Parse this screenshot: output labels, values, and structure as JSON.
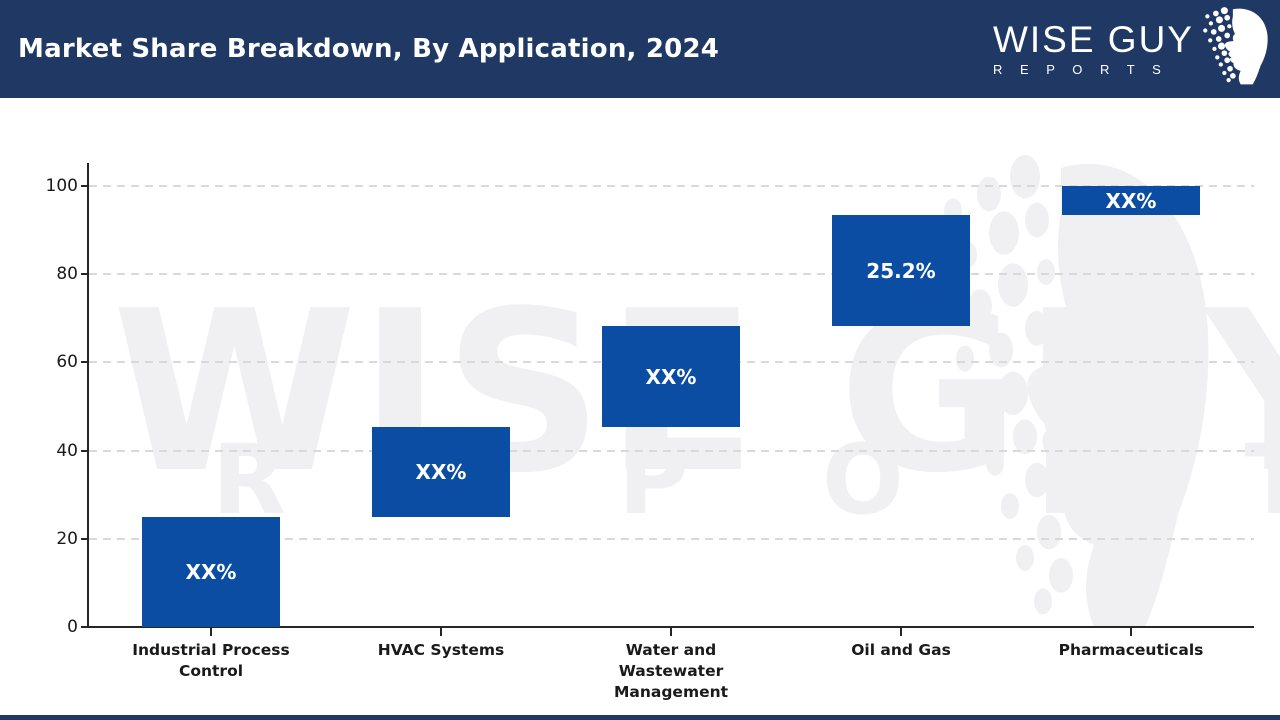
{
  "header": {
    "title": "Market Share Breakdown, By Application, 2024",
    "logo": {
      "line1": "WISE GUY",
      "line2": "R E P O R T S"
    }
  },
  "watermark": {
    "line1": "WISE GUY",
    "line2": "R E P O R T S"
  },
  "colors": {
    "header_bg": "#1f3864",
    "bar": "#0b4da2",
    "bar_label": "#ffffff",
    "grid": "#d9d9d9",
    "axis": "#262626",
    "tick_label": "#1a1a1a",
    "watermark": "#f0f0f3"
  },
  "chart_data": {
    "type": "bar",
    "variant": "waterfall-stacked-percent",
    "title": "Market Share Breakdown, By Application, 2024",
    "categories": [
      "Industrial Process\nControl",
      "HVAC Systems",
      "Water and\nWastewater\nManagement",
      "Oil and Gas",
      "Pharmaceuticals"
    ],
    "segments": [
      {
        "category": "Industrial Process Control",
        "start": 0,
        "end": 25.0,
        "label": "XX%"
      },
      {
        "category": "HVAC Systems",
        "start": 25.0,
        "end": 45.4,
        "label": "XX%"
      },
      {
        "category": "Water and Wastewater Management",
        "start": 45.4,
        "end": 68.2,
        "label": "XX%"
      },
      {
        "category": "Oil and Gas",
        "start": 68.2,
        "end": 93.4,
        "label": "25.2%"
      },
      {
        "category": "Pharmaceuticals",
        "start": 93.4,
        "end": 100.0,
        "label": "XX%"
      }
    ],
    "ylim": [
      0,
      105
    ],
    "yticks": [
      0,
      20,
      40,
      60,
      80,
      100
    ],
    "xlabel": "",
    "ylabel": "",
    "grid": "horizontal-dashed",
    "legend": "none"
  }
}
